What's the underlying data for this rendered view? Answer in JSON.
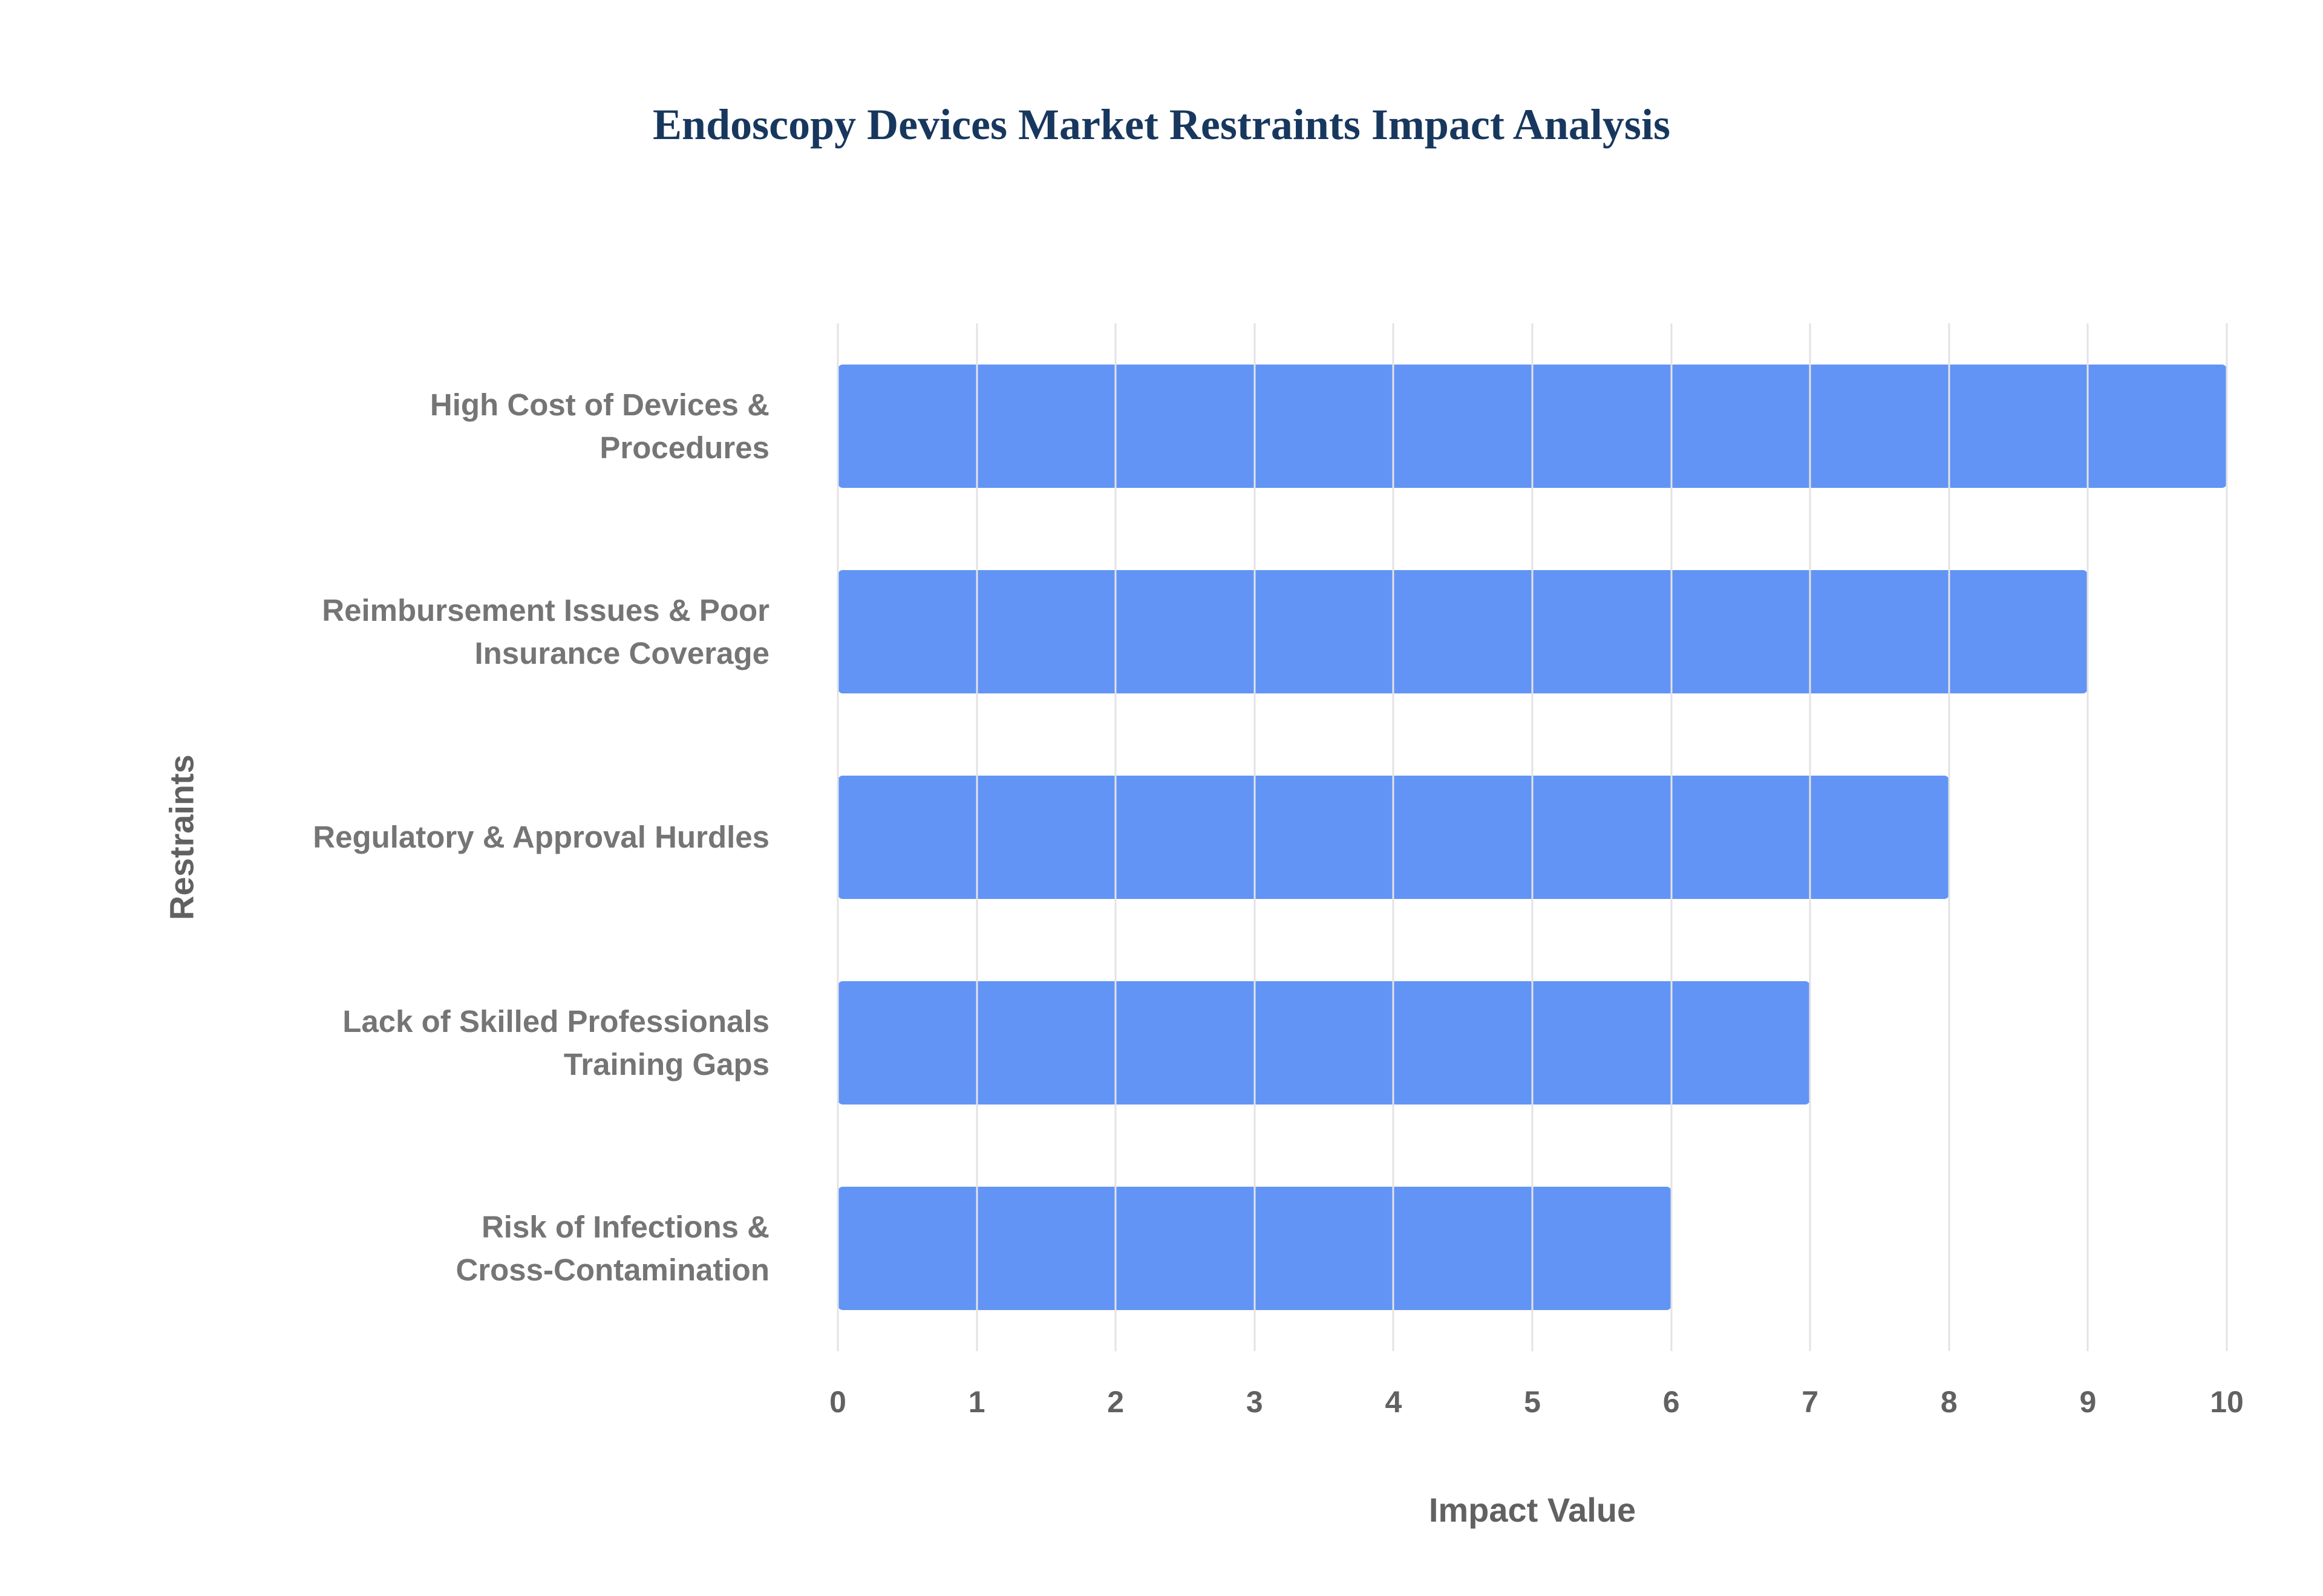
{
  "title": "Endoscopy Devices Market Restraints Impact Analysis",
  "colors": {
    "bar": "#6294F5",
    "title": "#17375E",
    "label": "#757575",
    "axis": "#616161",
    "grid": "#E3E3E3"
  },
  "chart_data": {
    "type": "bar",
    "orientation": "horizontal",
    "title": "Endoscopy Devices Market Restraints Impact Analysis",
    "xlabel": "Impact Value",
    "ylabel": "Restraints",
    "xlim": [
      0,
      10
    ],
    "xticks": [
      0,
      1,
      2,
      3,
      4,
      5,
      6,
      7,
      8,
      9,
      10
    ],
    "grid": true,
    "legend": false,
    "categories": [
      "High Cost of Devices &\nProcedures",
      "Reimbursement Issues & Poor\nInsurance Coverage",
      "Regulatory & Approval Hurdles",
      "Lack of Skilled Professionals\nTraining Gaps",
      "Risk of Infections &\nCross-Contamination"
    ],
    "values": [
      10,
      9,
      8,
      7,
      6
    ]
  }
}
